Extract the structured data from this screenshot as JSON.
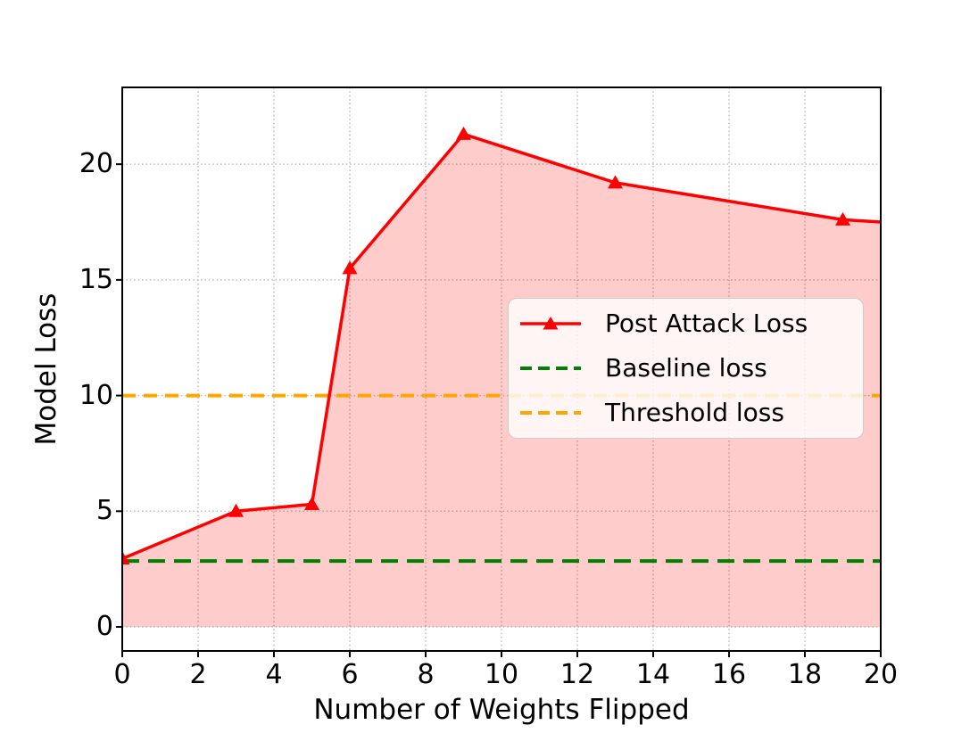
{
  "figure": {
    "background": "#ffffff",
    "text_color": "#000000",
    "grid_color": "#bcbcbc",
    "spine_color": "#000000"
  },
  "chart_data": {
    "type": "line",
    "title": "",
    "xlabel": "Number of Weights Flipped",
    "ylabel": "Model Loss",
    "xlim": [
      0,
      20
    ],
    "ylim": [
      -1.04,
      23.32
    ],
    "xticks": [
      0,
      2,
      4,
      6,
      8,
      10,
      12,
      14,
      16,
      18,
      20
    ],
    "yticks": [
      0,
      5,
      10,
      15,
      20
    ],
    "grid": {
      "style": "dotted",
      "axes": "both"
    },
    "series": [
      {
        "name": "Post Attack Loss",
        "type": "line",
        "color": "#ff0000",
        "line_style": "solid",
        "marker": "triangle-up",
        "fill_below": true,
        "fill_color": "rgba(255,0,0,0.2)",
        "fill_baseline_y": 0,
        "x": [
          0,
          3,
          5,
          6,
          9,
          13,
          19,
          20
        ],
        "y": [
          2.95,
          5.0,
          5.3,
          15.5,
          21.3,
          19.2,
          17.6,
          17.5
        ],
        "marker_points": [
          [
            0,
            2.95
          ],
          [
            3,
            5.0
          ],
          [
            5,
            5.3
          ],
          [
            6,
            15.5
          ],
          [
            9,
            21.3
          ],
          [
            13,
            19.2
          ],
          [
            19,
            17.6
          ]
        ]
      },
      {
        "name": "Baseline loss",
        "type": "hline",
        "color": "#008000",
        "line_style": "dashed",
        "dash": [
          19,
          10
        ],
        "y": 2.85
      },
      {
        "name": "Threshold loss",
        "type": "hline",
        "color": "#ffa500",
        "line_style": "dashed",
        "dash": [
          15,
          9
        ],
        "y": 10.0
      }
    ],
    "legend": {
      "position": "center-right",
      "entries": [
        "Post Attack Loss",
        "Baseline loss",
        "Threshold loss"
      ]
    }
  }
}
